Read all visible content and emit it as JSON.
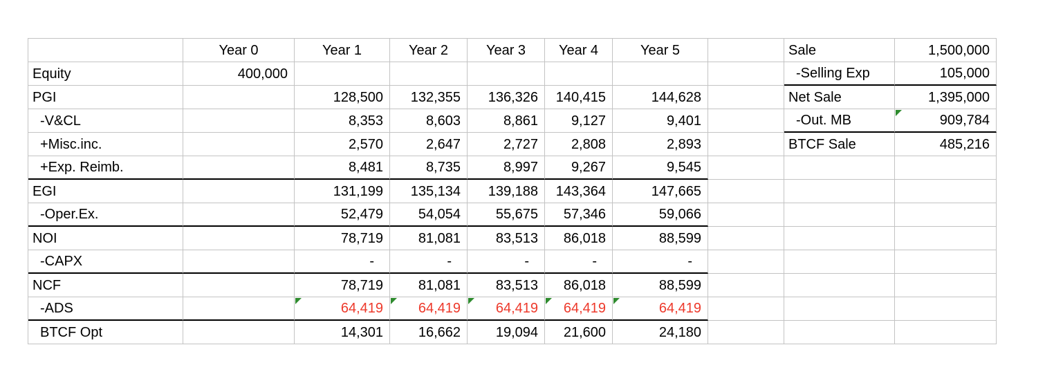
{
  "colors": {
    "gridline": "#c3c3c3",
    "strong_border": "#000000",
    "text": "#000000",
    "negative_value": "#ed392b",
    "error_flag_green": "#2e8b2e",
    "background": "#ffffff"
  },
  "main_table": {
    "columns": [
      "Year 0",
      "Year 1",
      "Year 2",
      "Year 3",
      "Year 4",
      "Year 5"
    ],
    "rows": [
      {
        "label": "Equity",
        "indent": false,
        "year0": "400,000",
        "values": [
          "",
          "",
          "",
          "",
          ""
        ]
      },
      {
        "label": "PGI",
        "indent": false,
        "values": [
          "128,500",
          "132,355",
          "136,326",
          "140,415",
          "144,628"
        ]
      },
      {
        "label": "-V&CL",
        "indent": true,
        "values": [
          "8,353",
          "8,603",
          "8,861",
          "9,127",
          "9,401"
        ]
      },
      {
        "label": "+Misc.inc.",
        "indent": true,
        "values": [
          "2,570",
          "2,647",
          "2,727",
          "2,808",
          "2,893"
        ]
      },
      {
        "label": "+Exp. Reimb.",
        "indent": true,
        "values": [
          "8,481",
          "8,735",
          "8,997",
          "9,267",
          "9,545"
        ],
        "thick_bottom": true
      },
      {
        "label": "EGI",
        "indent": false,
        "values": [
          "131,199",
          "135,134",
          "139,188",
          "143,364",
          "147,665"
        ]
      },
      {
        "label": "-Oper.Ex.",
        "indent": true,
        "values": [
          "52,479",
          "54,054",
          "55,675",
          "57,346",
          "59,066"
        ],
        "thick_bottom": true
      },
      {
        "label": "NOI",
        "indent": false,
        "values": [
          "78,719",
          "81,081",
          "83,513",
          "86,018",
          "88,599"
        ]
      },
      {
        "label": "-CAPX",
        "indent": true,
        "values": [
          "-",
          "-",
          "-",
          "-",
          "-"
        ],
        "thick_bottom": true,
        "accounting_dash": true
      },
      {
        "label": "NCF",
        "indent": false,
        "values": [
          "78,719",
          "81,081",
          "83,513",
          "86,018",
          "88,599"
        ]
      },
      {
        "label": "-ADS",
        "indent": true,
        "values": [
          "64,419",
          "64,419",
          "64,419",
          "64,419",
          "64,419"
        ],
        "thick_bottom": true,
        "negative_red": true,
        "error_flags": true
      },
      {
        "label": "BTCF Opt",
        "indent": true,
        "values": [
          "14,301",
          "16,662",
          "19,094",
          "21,600",
          "24,180"
        ]
      }
    ]
  },
  "side_table": {
    "rows": [
      {
        "label": "Sale",
        "indent": false,
        "value": "1,500,000"
      },
      {
        "label": "-Selling Exp",
        "indent": true,
        "value": "105,000",
        "thick_bottom": true
      },
      {
        "label": "Net Sale",
        "indent": false,
        "value": "1,395,000"
      },
      {
        "label": "-Out. MB",
        "indent": true,
        "value": "909,784",
        "thick_bottom": true,
        "error_flag": true
      },
      {
        "label": "BTCF Sale",
        "indent": false,
        "value": "485,216"
      }
    ]
  }
}
